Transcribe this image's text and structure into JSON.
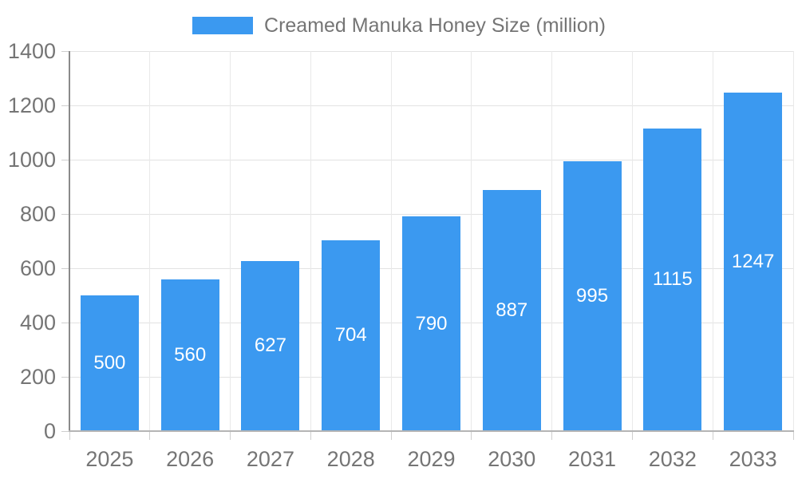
{
  "legend": {
    "label": "Creamed Manuka Honey Size (million)"
  },
  "chart_data": {
    "type": "bar",
    "title": "",
    "xlabel": "",
    "ylabel": "",
    "series_name": "Creamed Manuka Honey Size (million)",
    "categories": [
      "2025",
      "2026",
      "2027",
      "2028",
      "2029",
      "2030",
      "2031",
      "2032",
      "2033"
    ],
    "values": [
      500,
      560,
      627,
      704,
      790,
      887,
      995,
      1115,
      1247
    ],
    "bar_labels": [
      "500",
      "560",
      "627",
      "704",
      "790",
      "887",
      "995",
      "1115",
      "1247"
    ],
    "ylim": [
      0,
      1400
    ],
    "yticks": [
      0,
      200,
      400,
      600,
      800,
      1000,
      1200,
      1400
    ],
    "grid": true,
    "legend_position": "top",
    "colors": {
      "bar": "#3B99F0",
      "bar_label": "#FFFFFF",
      "axis_text": "#757575",
      "legend_text": "#757575",
      "hgrid": "#E2E2E2",
      "vgrid": "#E9E9E9",
      "y_axis_line": "#8A8A8A",
      "x_axis_line": "#B5B5B5",
      "tick": "#CFCFCF"
    }
  }
}
